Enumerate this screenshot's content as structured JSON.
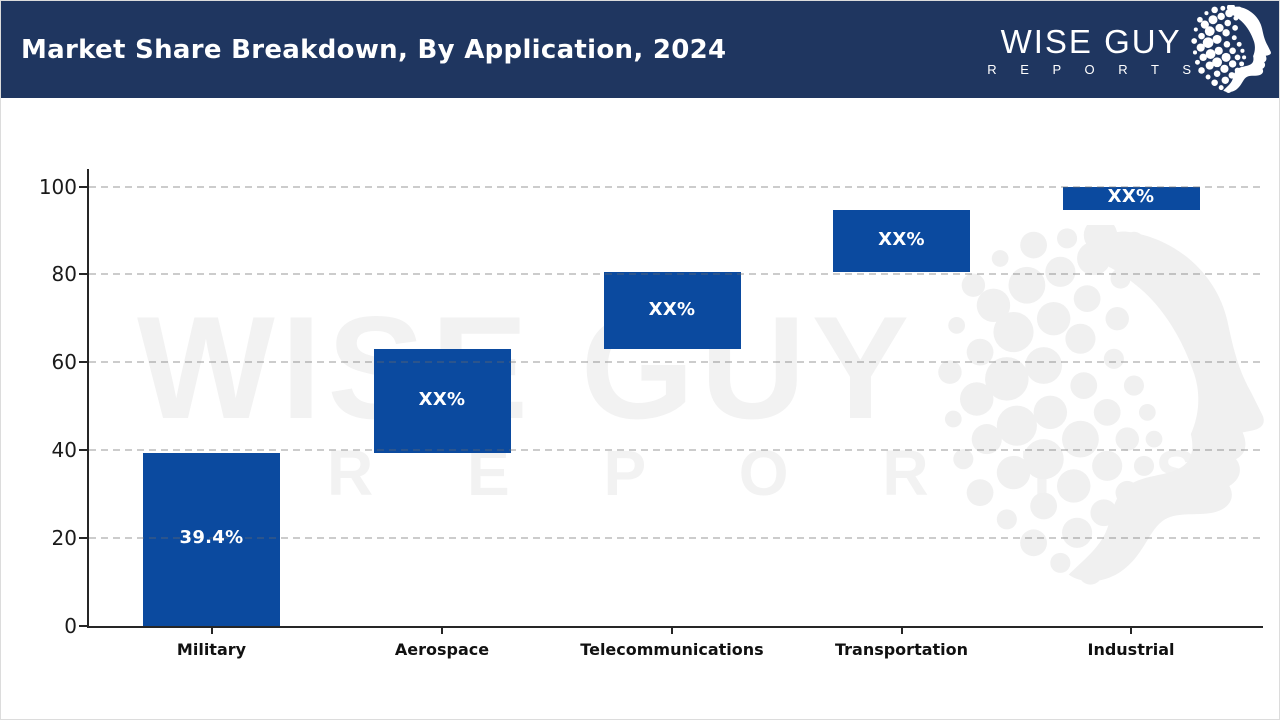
{
  "header": {
    "title": "Market Share Breakdown, By Application, 2024",
    "bg_color": "#1f3660",
    "logo": {
      "line1": "WISE GUY",
      "line2": "R E P O R T S"
    }
  },
  "chart_data": {
    "type": "bar",
    "subtype": "waterfall",
    "title": "Market Share Breakdown, By Application, 2024",
    "categories": [
      "Military",
      "Aerospace",
      "Telecommunications",
      "Transportation",
      "Industrial"
    ],
    "segments": [
      {
        "category": "Military",
        "start": 0,
        "end": 39.4,
        "label": "39.4%"
      },
      {
        "category": "Aerospace",
        "start": 39.4,
        "end": 63.0,
        "label": "XX%"
      },
      {
        "category": "Telecommunications",
        "start": 63.0,
        "end": 80.5,
        "label": "XX%"
      },
      {
        "category": "Transportation",
        "start": 80.5,
        "end": 94.7,
        "label": "XX%"
      },
      {
        "category": "Industrial",
        "start": 94.7,
        "end": 100,
        "label": "XX%"
      }
    ],
    "ylim": [
      0,
      100
    ],
    "yticks": [
      0,
      20,
      40,
      60,
      80,
      100
    ],
    "grid": true,
    "legend": false,
    "bar_color": "#0b4a9f",
    "bar_label_color": "#ffffff",
    "watermark": {
      "line1": "WISE GUY",
      "line2": "R E P O R T S"
    }
  }
}
